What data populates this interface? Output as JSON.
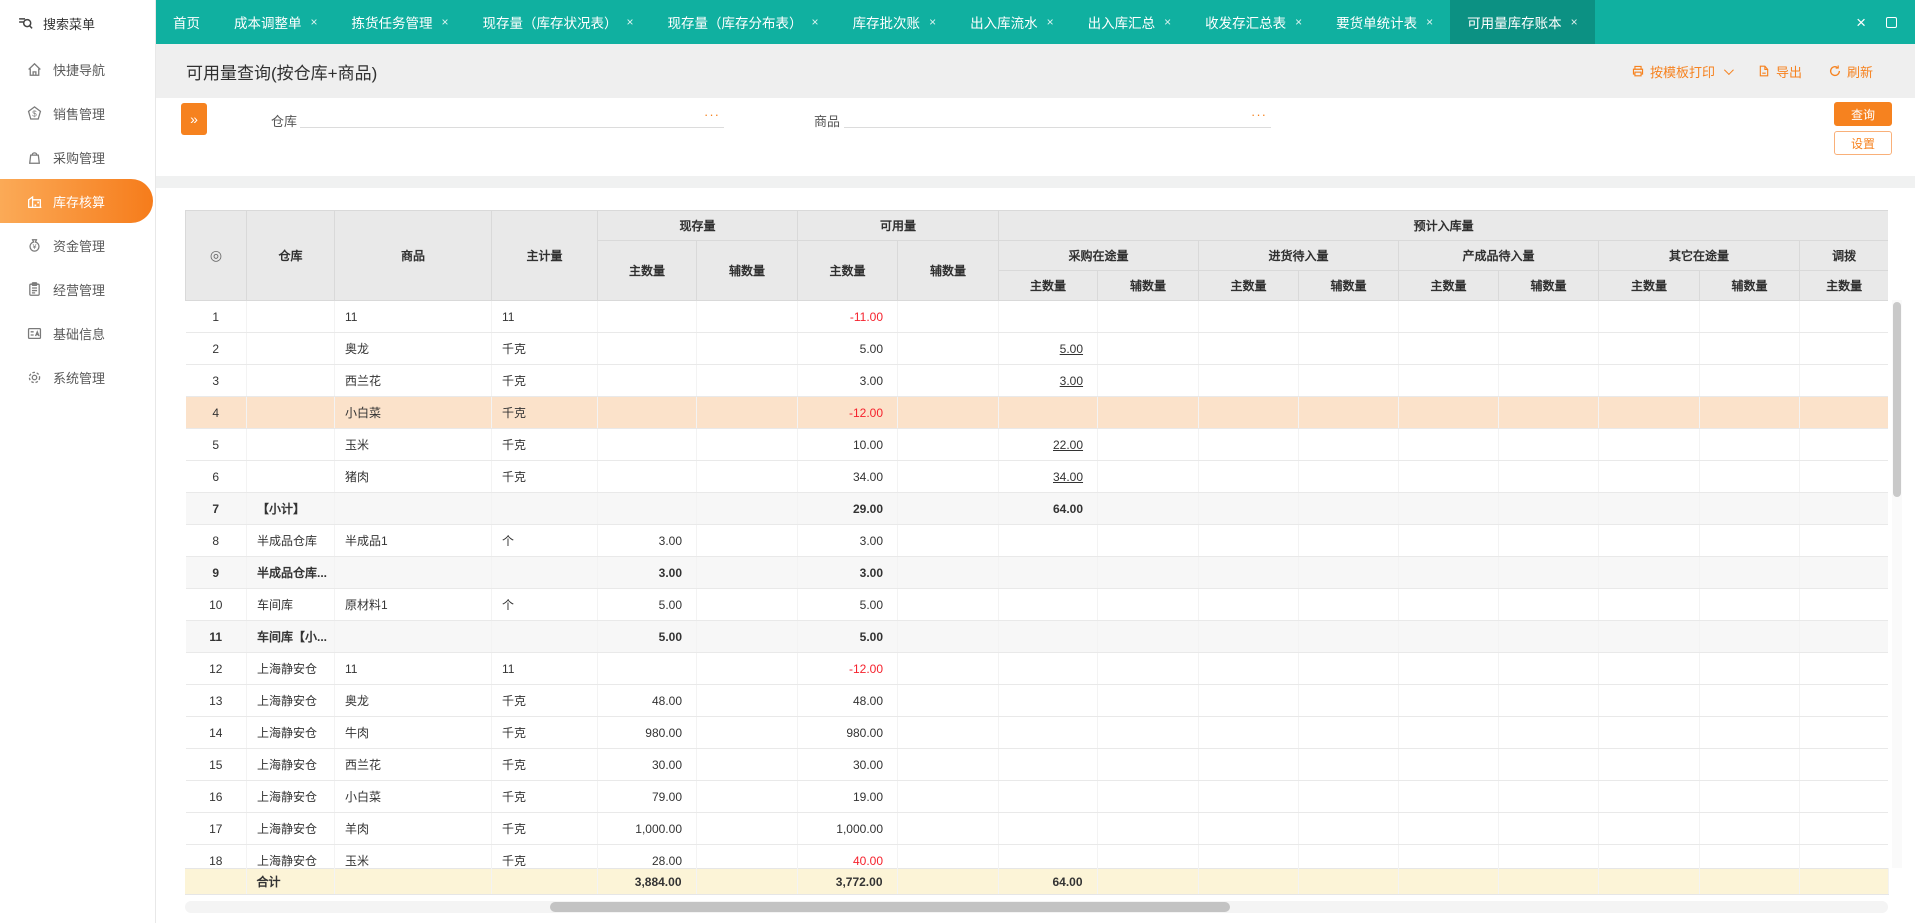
{
  "accent": {
    "teal": "#10b0a0",
    "teal_active": "#0c9183",
    "orange": "#f6821f",
    "red": "#f5222d",
    "warn_row_bg": "#fbe2ca",
    "total_row_bg": "#fcf4d7"
  },
  "sidebar": {
    "search_label": "搜索菜单",
    "items": [
      {
        "label": "快捷导航",
        "icon": "home-icon",
        "active": false
      },
      {
        "label": "销售管理",
        "icon": "sales-icon",
        "active": false
      },
      {
        "label": "采购管理",
        "icon": "purchase-bag-icon",
        "active": false
      },
      {
        "label": "库存核算",
        "icon": "warehouse-icon",
        "active": true
      },
      {
        "label": "资金管理",
        "icon": "money-pouch-icon",
        "active": false
      },
      {
        "label": "经营管理",
        "icon": "clipboard-icon",
        "active": false
      },
      {
        "label": "基础信息",
        "icon": "info-card-icon",
        "active": false
      },
      {
        "label": "系统管理",
        "icon": "gear-icon",
        "active": false
      }
    ]
  },
  "tabs": {
    "active_index": 10,
    "items": [
      {
        "label": "首页",
        "closable": false
      },
      {
        "label": "成本调整单",
        "closable": true
      },
      {
        "label": "拣货任务管理",
        "closable": true
      },
      {
        "label": "现存量（库存状况表）",
        "closable": true
      },
      {
        "label": "现存量（库存分布表）",
        "closable": true
      },
      {
        "label": "库存批次账",
        "closable": true
      },
      {
        "label": "出入库流水",
        "closable": true
      },
      {
        "label": "出入库汇总",
        "closable": true
      },
      {
        "label": "收发存汇总表",
        "closable": true
      },
      {
        "label": "要货单统计表",
        "closable": true
      },
      {
        "label": "可用量库存账本",
        "closable": true
      }
    ]
  },
  "page": {
    "title": "可用量查询(按仓库+商品)",
    "toolbar": {
      "print_label": "按模板打印",
      "export_label": "导出",
      "refresh_label": "刷新"
    }
  },
  "filters": {
    "warehouse_label": "仓库",
    "product_label": "商品",
    "picker_dots": "···",
    "query_button": "查询",
    "settings_button": "设置"
  },
  "table": {
    "header": {
      "selector_icon": "◎",
      "warehouse": "仓库",
      "product": "商品",
      "unit": "主计量",
      "onhand_group": "现存量",
      "available_group": "可用量",
      "expected_group": "预计入库量",
      "subgroups": [
        "采购在途量",
        "进货待入量",
        "产成品待入量",
        "其它在途量",
        "调拨"
      ],
      "main_qty": "主数量",
      "aux_qty": "辅数量"
    },
    "rows": [
      {
        "cells": [
          "1",
          "",
          "11",
          "11",
          "",
          "",
          "-11.00",
          "",
          "",
          "",
          "",
          "",
          "",
          "",
          "",
          "",
          ""
        ],
        "kind": "normal",
        "red": [
          6
        ],
        "link": []
      },
      {
        "cells": [
          "2",
          "",
          "奥龙",
          "千克",
          "",
          "",
          "5.00",
          "",
          "5.00",
          "",
          "",
          "",
          "",
          "",
          "",
          "",
          ""
        ],
        "kind": "normal",
        "red": [],
        "link": [
          8
        ]
      },
      {
        "cells": [
          "3",
          "",
          "西兰花",
          "千克",
          "",
          "",
          "3.00",
          "",
          "3.00",
          "",
          "",
          "",
          "",
          "",
          "",
          "",
          ""
        ],
        "kind": "normal",
        "red": [],
        "link": [
          8
        ]
      },
      {
        "cells": [
          "4",
          "",
          "小白菜",
          "千克",
          "",
          "",
          "-12.00",
          "",
          "",
          "",
          "",
          "",
          "",
          "",
          "",
          "",
          ""
        ],
        "kind": "warn",
        "red": [
          6
        ],
        "link": []
      },
      {
        "cells": [
          "5",
          "",
          "玉米",
          "千克",
          "",
          "",
          "10.00",
          "",
          "22.00",
          "",
          "",
          "",
          "",
          "",
          "",
          "",
          ""
        ],
        "kind": "normal",
        "red": [],
        "link": [
          8
        ]
      },
      {
        "cells": [
          "6",
          "",
          "猪肉",
          "千克",
          "",
          "",
          "34.00",
          "",
          "34.00",
          "",
          "",
          "",
          "",
          "",
          "",
          "",
          ""
        ],
        "kind": "normal",
        "red": [],
        "link": [
          8
        ]
      },
      {
        "cells": [
          "7",
          "【小计】",
          "",
          "",
          "",
          "",
          "29.00",
          "",
          "64.00",
          "",
          "",
          "",
          "",
          "",
          "",
          "",
          ""
        ],
        "kind": "sub",
        "red": [],
        "link": []
      },
      {
        "cells": [
          "8",
          "半成品仓库",
          "半成品1",
          "个",
          "3.00",
          "",
          "3.00",
          "",
          "",
          "",
          "",
          "",
          "",
          "",
          "",
          "",
          ""
        ],
        "kind": "normal",
        "red": [],
        "link": []
      },
      {
        "cells": [
          "9",
          "半成品仓库...",
          "",
          "",
          "3.00",
          "",
          "3.00",
          "",
          "",
          "",
          "",
          "",
          "",
          "",
          "",
          "",
          ""
        ],
        "kind": "sub",
        "red": [],
        "link": []
      },
      {
        "cells": [
          "10",
          "车间库",
          "原材料1",
          "个",
          "5.00",
          "",
          "5.00",
          "",
          "",
          "",
          "",
          "",
          "",
          "",
          "",
          "",
          ""
        ],
        "kind": "normal",
        "red": [],
        "link": []
      },
      {
        "cells": [
          "11",
          "车间库【小...",
          "",
          "",
          "5.00",
          "",
          "5.00",
          "",
          "",
          "",
          "",
          "",
          "",
          "",
          "",
          "",
          ""
        ],
        "kind": "sub",
        "red": [],
        "link": []
      },
      {
        "cells": [
          "12",
          "上海静安仓",
          "11",
          "11",
          "",
          "",
          "-12.00",
          "",
          "",
          "",
          "",
          "",
          "",
          "",
          "",
          "",
          ""
        ],
        "kind": "normal",
        "red": [
          6
        ],
        "link": []
      },
      {
        "cells": [
          "13",
          "上海静安仓",
          "奥龙",
          "千克",
          "48.00",
          "",
          "48.00",
          "",
          "",
          "",
          "",
          "",
          "",
          "",
          "",
          "",
          ""
        ],
        "kind": "normal",
        "red": [],
        "link": []
      },
      {
        "cells": [
          "14",
          "上海静安仓",
          "牛肉",
          "千克",
          "980.00",
          "",
          "980.00",
          "",
          "",
          "",
          "",
          "",
          "",
          "",
          "",
          "",
          ""
        ],
        "kind": "normal",
        "red": [],
        "link": []
      },
      {
        "cells": [
          "15",
          "上海静安仓",
          "西兰花",
          "千克",
          "30.00",
          "",
          "30.00",
          "",
          "",
          "",
          "",
          "",
          "",
          "",
          "",
          "",
          ""
        ],
        "kind": "normal",
        "red": [],
        "link": []
      },
      {
        "cells": [
          "16",
          "上海静安仓",
          "小白菜",
          "千克",
          "79.00",
          "",
          "19.00",
          "",
          "",
          "",
          "",
          "",
          "",
          "",
          "",
          "",
          ""
        ],
        "kind": "normal",
        "red": [],
        "link": []
      },
      {
        "cells": [
          "17",
          "上海静安仓",
          "羊肉",
          "千克",
          "1,000.00",
          "",
          "1,000.00",
          "",
          "",
          "",
          "",
          "",
          "",
          "",
          "",
          "",
          ""
        ],
        "kind": "normal",
        "red": [],
        "link": []
      },
      {
        "cells": [
          "18",
          "上海静安仓",
          "玉米",
          "千克",
          "28.00",
          "",
          "40.00",
          "",
          "",
          "",
          "",
          "",
          "",
          "",
          "",
          "",
          ""
        ],
        "kind": "normal",
        "red": [
          6
        ],
        "link": []
      }
    ],
    "footer": {
      "cells": [
        "",
        "合计",
        "",
        "",
        "3,884.00",
        "",
        "3,772.00",
        "",
        "64.00",
        "",
        "",
        "",
        "",
        "",
        "",
        "",
        ""
      ]
    }
  },
  "window_controls": {
    "close": "×"
  }
}
